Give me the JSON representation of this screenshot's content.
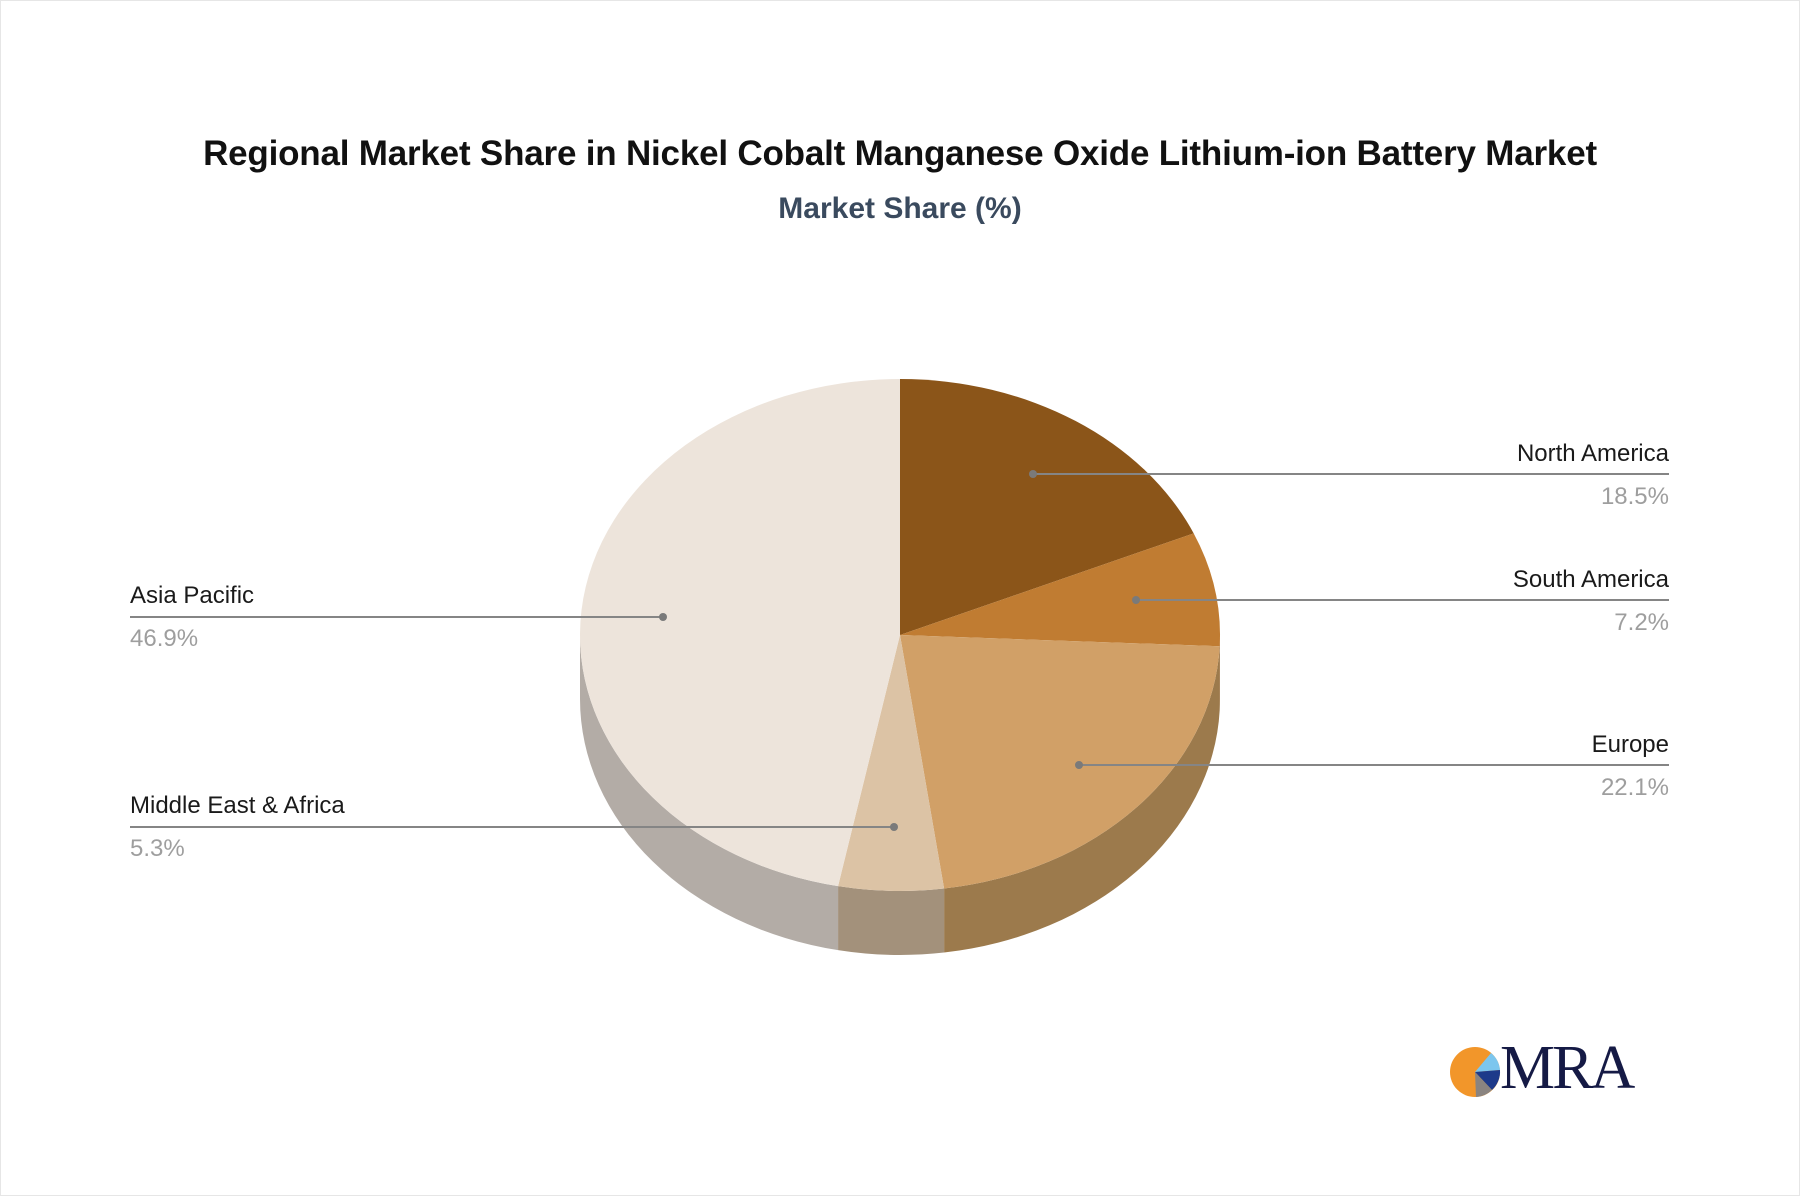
{
  "header": {
    "title": "Regional Market Share in Nickel Cobalt Manganese Oxide Lithium-ion Battery Market",
    "subtitle": "Market Share (%)"
  },
  "slices": [
    {
      "label": "North America",
      "value_text": "18.5%",
      "color": "#8B5519",
      "side_color": "#6f4414"
    },
    {
      "label": "South America",
      "value_text": "7.2%",
      "color": "#C07C32",
      "side_color": "#9a6328"
    },
    {
      "label": "Europe",
      "value_text": "22.1%",
      "color": "#D1A067",
      "side_color": "#9C7A4C"
    },
    {
      "label": "Middle East & Africa",
      "value_text": "5.3%",
      "color": "#DCC3A5",
      "side_color": "#A3917B"
    },
    {
      "label": "Asia Pacific",
      "value_text": "46.9%",
      "color": "#EDE4DB",
      "side_color": "#B3ACA6"
    }
  ],
  "logo": {
    "text": "MRA",
    "icon": "pie-logo-icon"
  },
  "chart_data": {
    "type": "pie",
    "title": "Regional Market Share in Nickel Cobalt Manganese Oxide Lithium-ion Battery Market",
    "subtitle": "Market Share (%)",
    "categories": [
      "North America",
      "South America",
      "Europe",
      "Middle East & Africa",
      "Asia Pacific"
    ],
    "values": [
      18.5,
      7.2,
      22.1,
      5.3,
      46.9
    ],
    "unit": "%",
    "style": "3d-pie",
    "legend": "leader-line labels"
  }
}
